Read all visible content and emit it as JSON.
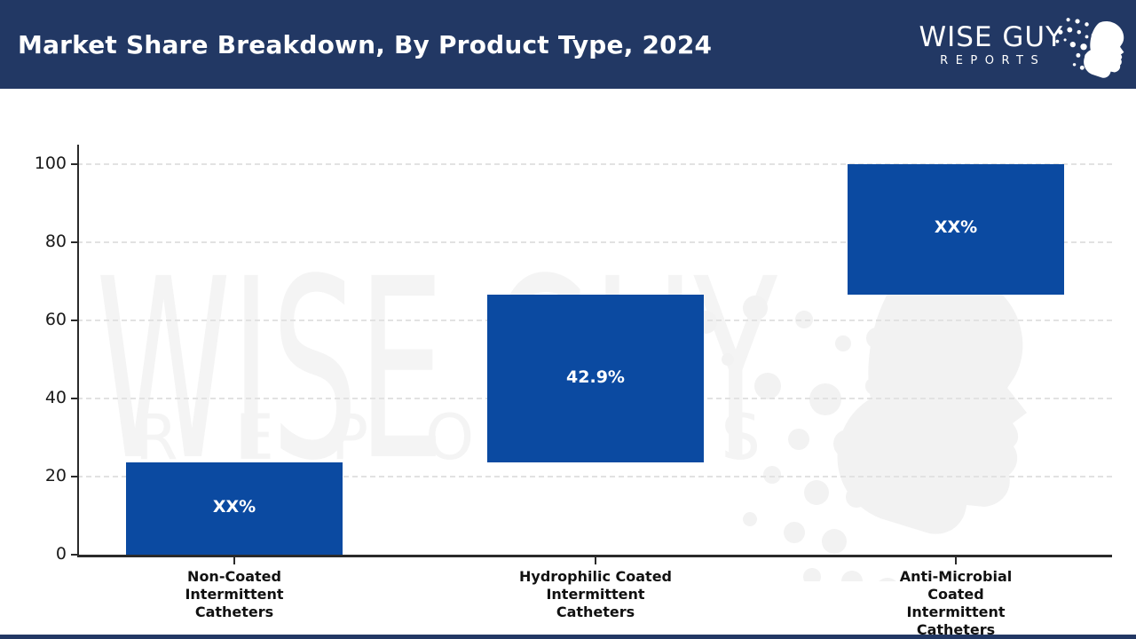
{
  "header": {
    "title": "Market Share Breakdown, By Product Type, 2024",
    "logo": {
      "primary": "WISE GUY",
      "secondary": "REPORTS"
    }
  },
  "watermark": {
    "primary": "WISE GUY",
    "secondary": "REPORTS"
  },
  "colors": {
    "header_bg": "#223864",
    "bar_fill": "#0b4aa1",
    "bar_label": "#ffffff",
    "grid_line": "#e2e2e2",
    "axis_line": "#2a2a2a",
    "tick_label": "#1a1a1a",
    "watermark": "#f4f4f4"
  },
  "chart_data": {
    "type": "bar",
    "variant": "stacked-waterfall, floating segments summing to 100%",
    "title": "Market Share Breakdown, By Product Type, 2024",
    "xlabel": "",
    "ylabel": "",
    "ylim": [
      0,
      100
    ],
    "yticks": [
      0,
      20,
      40,
      60,
      80,
      100
    ],
    "grid": "horizontal dashed",
    "legend": "none",
    "categories": [
      [
        "Non-Coated",
        "Intermittent",
        "Catheters"
      ],
      [
        "Hydrophilic Coated",
        "Intermittent",
        "Catheters"
      ],
      [
        "Anti-Microbial",
        "Coated",
        "Intermittent",
        "Catheters"
      ]
    ],
    "bars": [
      {
        "category": "Non-Coated Intermittent Catheters",
        "start": 0,
        "end": 23.6,
        "label": "XX%"
      },
      {
        "category": "Hydrophilic Coated Intermittent Catheters",
        "start": 23.6,
        "end": 66.5,
        "label": "42.9%"
      },
      {
        "category": "Anti-Microbial Coated Intermittent Catheters",
        "start": 66.5,
        "end": 100,
        "label": "XX%"
      }
    ]
  }
}
